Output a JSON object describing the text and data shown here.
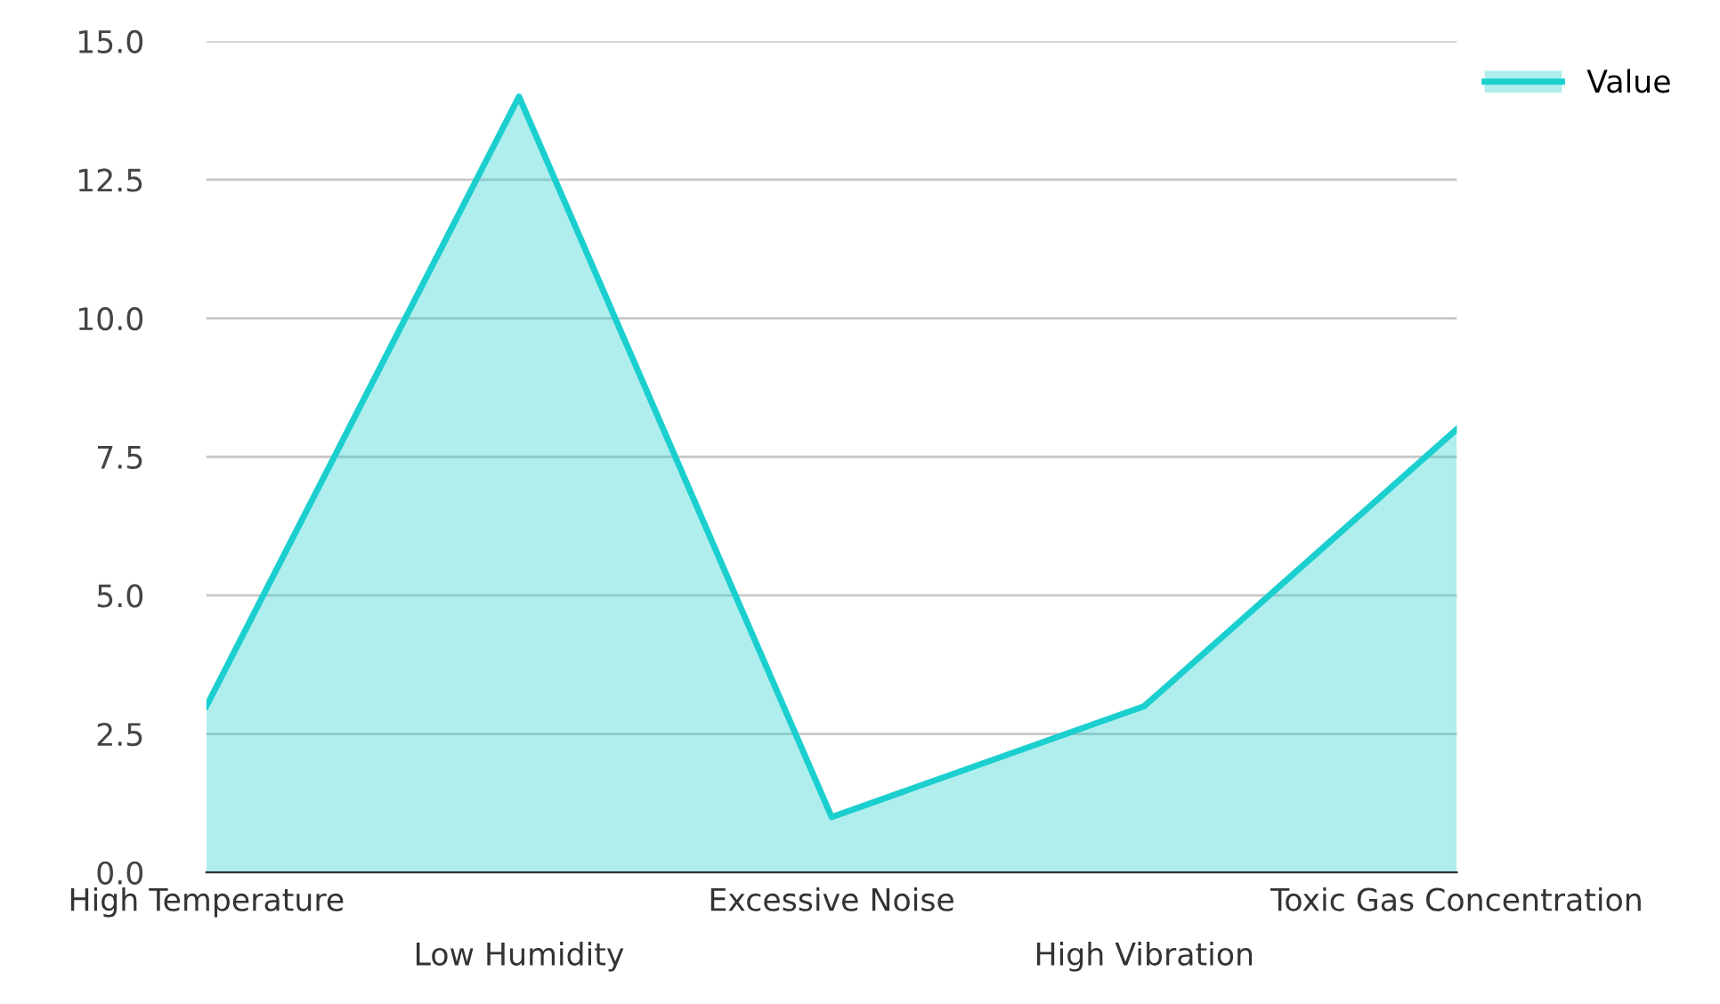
{
  "chart_data": {
    "type": "area",
    "categories": [
      "High Temperature",
      "Low Humidity",
      "Excessive Noise",
      "High Vibration",
      "Toxic Gas Concentration"
    ],
    "series": [
      {
        "name": "Value",
        "color": "#1ccfcf",
        "values": [
          3,
          14,
          1,
          3,
          8
        ]
      }
    ],
    "ylim": [
      0,
      15
    ],
    "yticks": [
      {
        "value": 0,
        "label": "0.0"
      },
      {
        "value": 2.5,
        "label": "2.5"
      },
      {
        "value": 5,
        "label": "5.0"
      },
      {
        "value": 7.5,
        "label": "7.5"
      },
      {
        "value": 10,
        "label": "10.0"
      },
      {
        "value": 12.5,
        "label": "12.5"
      },
      {
        "value": 15,
        "label": "15.0"
      }
    ],
    "grid": "y",
    "legend": "top right"
  }
}
